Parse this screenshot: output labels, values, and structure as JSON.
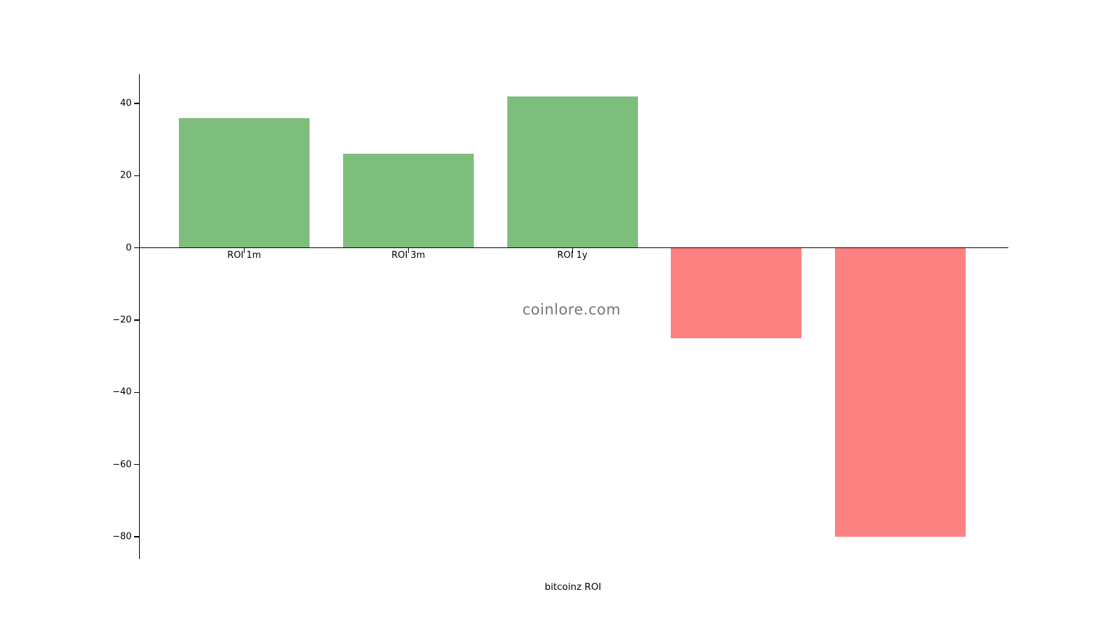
{
  "chart_data": {
    "type": "bar",
    "categories": [
      "ROI 1m",
      "ROI 3m",
      "ROI 1y",
      "",
      ""
    ],
    "values": [
      36,
      26,
      42,
      -25,
      -80
    ],
    "title": "bitcoinz ROI",
    "watermark": "coinlore.com",
    "xlabel": "",
    "ylabel": "",
    "ylim": [
      -86.2,
      48.1
    ],
    "yticks": [
      40,
      20,
      0,
      -20,
      -40,
      -60,
      -80
    ],
    "grid": false,
    "legend": "none",
    "positive_color": "#7dbe7d",
    "negative_color": "#fc8181",
    "axis_color": "#000000",
    "watermark_color": "#777777",
    "label_color": "#000000"
  }
}
